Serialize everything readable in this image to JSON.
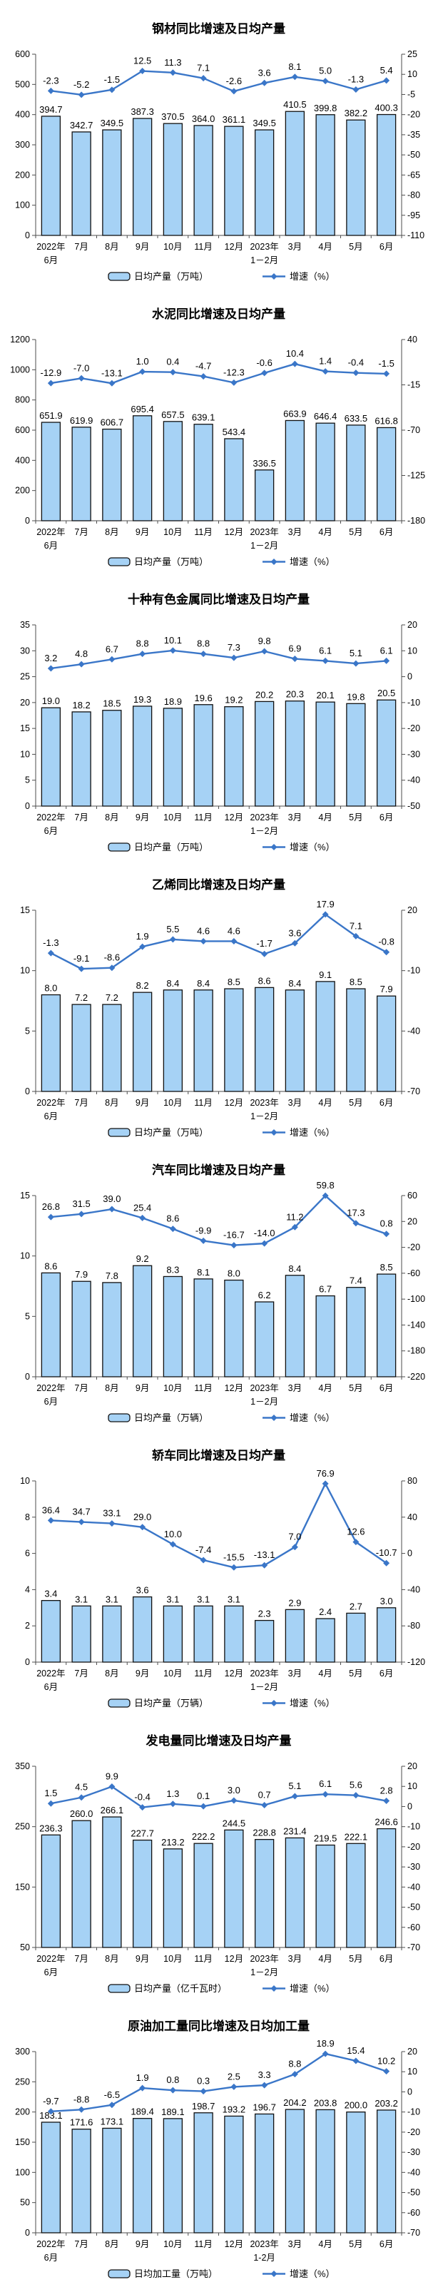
{
  "colors": {
    "bar_fill": "#A6D2F5",
    "bar_border": "#111111",
    "line": "#3A76C8",
    "title_text": "#1a1a1a",
    "axis": "#4d4d4d",
    "label_text": "#000000"
  },
  "chart_data": [
    {
      "type": "bar+line",
      "title": "钢材同比增速及日均产量",
      "categories": [
        "2022年\n6月",
        "7月",
        "8月",
        "9月",
        "10月",
        "11月",
        "12月",
        "2023年\n1－2月",
        "3月",
        "4月",
        "5月",
        "6月"
      ],
      "series": [
        {
          "name": "日均产量（万吨）",
          "type": "bar",
          "axis": "left",
          "values": [
            394.7,
            342.7,
            349.5,
            387.3,
            370.5,
            364.0,
            361.1,
            349.5,
            410.5,
            399.8,
            382.2,
            400.3
          ]
        },
        {
          "name": "增速（%）",
          "type": "line",
          "axis": "right",
          "values": [
            -2.3,
            -5.2,
            -1.5,
            12.5,
            11.3,
            7.1,
            -2.6,
            3.6,
            8.1,
            5.0,
            -1.3,
            5.4
          ]
        }
      ],
      "left_axis": {
        "range": [
          0,
          600
        ],
        "ticks": [
          600,
          500,
          400,
          300,
          200,
          100,
          0
        ]
      },
      "right_axis": {
        "range": [
          -110,
          25
        ],
        "ticks": [
          25,
          10,
          -5,
          -20,
          -35,
          -50,
          -65,
          -80,
          -95,
          -110
        ]
      },
      "grid": false,
      "legend_position": "bottom"
    },
    {
      "type": "bar+line",
      "title": "水泥同比增速及日均产量",
      "categories": [
        "2022年\n6月",
        "7月",
        "8月",
        "9月",
        "10月",
        "11月",
        "12月",
        "2023年\n1－2月",
        "3月",
        "4月",
        "5月",
        "6月"
      ],
      "series": [
        {
          "name": "日均产量（万吨）",
          "type": "bar",
          "axis": "left",
          "values": [
            651.9,
            619.9,
            606.7,
            695.4,
            657.5,
            639.1,
            543.4,
            336.5,
            663.9,
            646.4,
            633.5,
            616.8
          ]
        },
        {
          "name": "增速（%）",
          "type": "line",
          "axis": "right",
          "values": [
            -12.9,
            -7.0,
            -13.1,
            1.0,
            0.4,
            -4.7,
            -12.3,
            -0.6,
            10.4,
            1.4,
            -0.4,
            -1.5
          ]
        }
      ],
      "left_axis": {
        "range": [
          0,
          1200
        ],
        "ticks": [
          1200,
          1000,
          800,
          600,
          400,
          200,
          0
        ]
      },
      "right_axis": {
        "range": [
          -180,
          40
        ],
        "ticks": [
          40,
          -15,
          -70,
          -125,
          -180
        ]
      },
      "grid": false,
      "legend_position": "bottom"
    },
    {
      "type": "bar+line",
      "title": "十种有色金属同比增速及日均产量",
      "categories": [
        "2022年\n6月",
        "7月",
        "8月",
        "9月",
        "10月",
        "11月",
        "12月",
        "2023年\n1－2月",
        "3月",
        "4月",
        "5月",
        "6月"
      ],
      "series": [
        {
          "name": "日均产量（万吨）",
          "type": "bar",
          "axis": "left",
          "values": [
            19.0,
            18.2,
            18.5,
            19.3,
            18.9,
            19.6,
            19.2,
            20.2,
            20.3,
            20.1,
            19.8,
            20.5
          ]
        },
        {
          "name": "增速（%）",
          "type": "line",
          "axis": "right",
          "values": [
            3.2,
            4.8,
            6.7,
            8.8,
            10.1,
            8.8,
            7.3,
            9.8,
            6.9,
            6.1,
            5.1,
            6.1
          ]
        }
      ],
      "left_axis": {
        "range": [
          0,
          35
        ],
        "ticks": [
          35,
          30,
          25,
          20,
          15,
          10,
          5,
          0
        ]
      },
      "right_axis": {
        "range": [
          -50,
          20
        ],
        "ticks": [
          20,
          10,
          0,
          -10,
          -20,
          -30,
          -40,
          -50
        ]
      },
      "grid": false,
      "legend_position": "bottom"
    },
    {
      "type": "bar+line",
      "title": "乙烯同比增速及日均产量",
      "categories": [
        "2022年\n6月",
        "7月",
        "8月",
        "9月",
        "10月",
        "11月",
        "12月",
        "2023年\n1－2月",
        "3月",
        "4月",
        "5月",
        "6月"
      ],
      "series": [
        {
          "name": "日均产量（万吨）",
          "type": "bar",
          "axis": "left",
          "values": [
            8.0,
            7.2,
            7.2,
            8.2,
            8.4,
            8.4,
            8.5,
            8.6,
            8.4,
            9.1,
            8.5,
            7.9
          ]
        },
        {
          "name": "增速（%）",
          "type": "line",
          "axis": "right",
          "values": [
            -1.3,
            -9.1,
            -8.6,
            1.9,
            5.5,
            4.6,
            4.6,
            -1.7,
            3.6,
            17.9,
            7.1,
            -0.8
          ]
        }
      ],
      "left_axis": {
        "range": [
          0,
          15
        ],
        "ticks": [
          15,
          10,
          5,
          0
        ]
      },
      "right_axis": {
        "range": [
          -70,
          20
        ],
        "ticks": [
          20,
          -10,
          -40,
          -70
        ]
      },
      "grid": false,
      "legend_position": "bottom"
    },
    {
      "type": "bar+line",
      "title": "汽车同比增速及日均产量",
      "categories": [
        "2022年\n6月",
        "7月",
        "8月",
        "9月",
        "10月",
        "11月",
        "12月",
        "2023年\n1－2月",
        "3月",
        "4月",
        "5月",
        "6月"
      ],
      "series": [
        {
          "name": "日均产量（万辆）",
          "type": "bar",
          "axis": "left",
          "values": [
            8.6,
            7.9,
            7.8,
            9.2,
            8.3,
            8.1,
            8.0,
            6.2,
            8.4,
            6.7,
            7.4,
            8.5
          ]
        },
        {
          "name": "增速（%）",
          "type": "line",
          "axis": "right",
          "values": [
            26.8,
            31.5,
            39.0,
            25.4,
            8.6,
            -9.9,
            -16.7,
            -14.0,
            11.2,
            59.8,
            17.3,
            0.8
          ]
        }
      ],
      "left_axis": {
        "range": [
          0,
          15
        ],
        "ticks": [
          15,
          10,
          5,
          0
        ]
      },
      "right_axis": {
        "range": [
          -220,
          60
        ],
        "ticks": [
          60,
          20,
          -20,
          -60,
          -100,
          -140,
          -180,
          -220
        ]
      },
      "grid": false,
      "legend_position": "bottom"
    },
    {
      "type": "bar+line",
      "title": "轿车同比增速及日均产量",
      "categories": [
        "2022年\n6月",
        "7月",
        "8月",
        "9月",
        "10月",
        "11月",
        "12月",
        "2023年\n1－2月",
        "3月",
        "4月",
        "5月",
        "6月"
      ],
      "series": [
        {
          "name": "日均产量（万辆）",
          "type": "bar",
          "axis": "left",
          "values": [
            3.4,
            3.1,
            3.1,
            3.6,
            3.1,
            3.1,
            3.1,
            2.3,
            2.9,
            2.4,
            2.7,
            3.0
          ]
        },
        {
          "name": "增速（%）",
          "type": "line",
          "axis": "right",
          "values": [
            36.4,
            34.7,
            33.1,
            29.0,
            10.0,
            -7.4,
            -15.5,
            -13.1,
            7.0,
            76.9,
            12.6,
            -10.7
          ]
        }
      ],
      "left_axis": {
        "range": [
          0,
          10
        ],
        "ticks": [
          10,
          8,
          6,
          4,
          2,
          0
        ]
      },
      "right_axis": {
        "range": [
          -120,
          80
        ],
        "ticks": [
          80,
          40,
          0,
          -40,
          -80,
          -120
        ]
      },
      "grid": false,
      "legend_position": "bottom"
    },
    {
      "type": "bar+line",
      "title": "发电量同比增速及日均产量",
      "categories": [
        "2022年\n6月",
        "7月",
        "8月",
        "9月",
        "10月",
        "11月",
        "12月",
        "2023年\n1－2月",
        "3月",
        "4月",
        "5月",
        "6月"
      ],
      "series": [
        {
          "name": "日均产量（亿千瓦时）",
          "type": "bar",
          "axis": "left",
          "values": [
            236.3,
            260.0,
            266.1,
            227.7,
            213.2,
            222.2,
            244.5,
            228.8,
            231.4,
            219.5,
            222.1,
            246.6
          ]
        },
        {
          "name": "增速（%）",
          "type": "line",
          "axis": "right",
          "values": [
            1.5,
            4.5,
            9.9,
            -0.4,
            1.3,
            0.1,
            3.0,
            0.7,
            5.1,
            6.1,
            5.6,
            2.8
          ]
        }
      ],
      "left_axis": {
        "range": [
          50,
          350
        ],
        "ticks": [
          350,
          250,
          150,
          50
        ]
      },
      "right_axis": {
        "range": [
          -70,
          20
        ],
        "ticks": [
          20,
          10,
          0,
          -10,
          -20,
          -30,
          -40,
          -50,
          -60,
          -70
        ]
      },
      "grid": false,
      "legend_position": "bottom"
    },
    {
      "type": "bar+line",
      "title": "原油加工量同比增速及日均加工量",
      "categories": [
        "2022年\n6月",
        "7月",
        "8月",
        "9月",
        "10月",
        "11月",
        "12月",
        "2023年\n1-2月",
        "3月",
        "4月",
        "5月",
        "6月"
      ],
      "series": [
        {
          "name": "日均加工量（万吨）",
          "type": "bar",
          "axis": "left",
          "values": [
            183.1,
            171.6,
            173.1,
            189.4,
            189.1,
            198.7,
            193.2,
            196.7,
            204.2,
            203.8,
            200.0,
            203.2
          ]
        },
        {
          "name": "增速（%）",
          "type": "line",
          "axis": "right",
          "values": [
            -9.7,
            -8.8,
            -6.5,
            1.9,
            0.8,
            0.3,
            2.5,
            3.3,
            8.8,
            18.9,
            15.4,
            10.2
          ]
        }
      ],
      "left_axis": {
        "range": [
          0,
          300
        ],
        "ticks": [
          300,
          250,
          200,
          150,
          100,
          50,
          0
        ]
      },
      "right_axis": {
        "range": [
          -70,
          20
        ],
        "ticks": [
          20,
          10,
          0,
          -10,
          -20,
          -30,
          -40,
          -50,
          -60,
          -70
        ]
      },
      "grid": false,
      "legend_position": "bottom"
    }
  ]
}
